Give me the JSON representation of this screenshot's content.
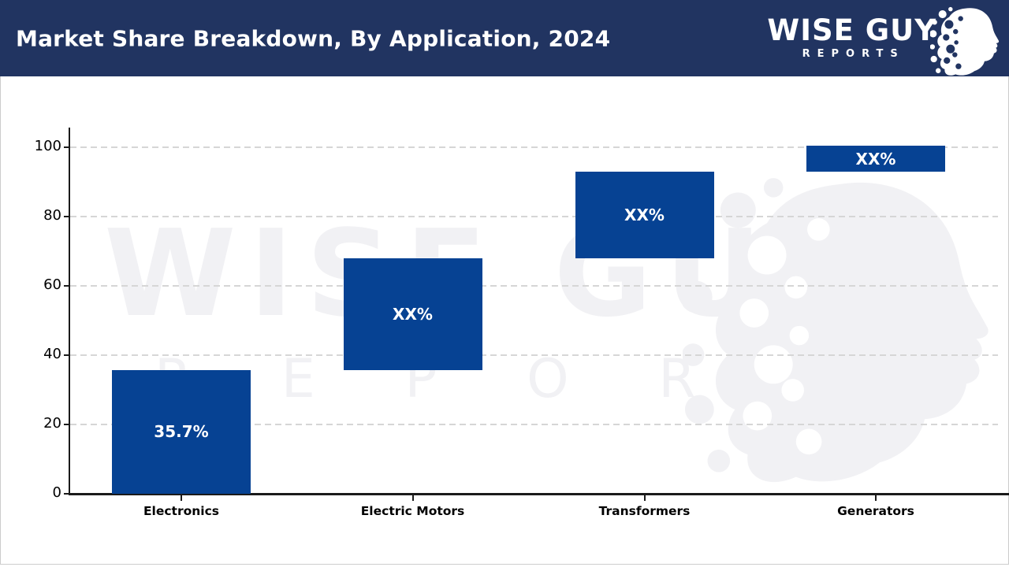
{
  "header": {
    "title": "Market Share Breakdown, By Application, 2024",
    "logo": {
      "name": "WISE GUY",
      "sub": "REPORTS"
    }
  },
  "watermark": {
    "name": "WISE GUY",
    "sub": "R E P O R T S"
  },
  "chart_data": {
    "type": "bar",
    "variant": "waterfall-stacked-breakdown",
    "title": "Market Share Breakdown, By Application, 2024",
    "categories": [
      "Electronics",
      "Electric Motors",
      "Transformers",
      "Generators"
    ],
    "segments": [
      {
        "category": "Electronics",
        "start": 0,
        "end": 35.7,
        "label": "35.7%"
      },
      {
        "category": "Electric Motors",
        "start": 35.7,
        "end": 67.9,
        "label": "XX%"
      },
      {
        "category": "Transformers",
        "start": 67.9,
        "end": 92.9,
        "label": "XX%"
      },
      {
        "category": "Generators",
        "start": 92.9,
        "end": 100.4,
        "label": "XX%"
      }
    ],
    "approx_segment_sizes_pct": [
      35.7,
      32.2,
      25.0,
      7.5
    ],
    "yticks": [
      0,
      20,
      40,
      60,
      80,
      100
    ],
    "ylim": [
      0,
      106
    ],
    "xlabel": "",
    "ylabel": "",
    "grid": "horizontal-dashed",
    "legend": "none",
    "colors": {
      "bar": "#064293",
      "bar_label": "#ffffff",
      "grid": "#d6d6d6",
      "axis": "#1a1a1a",
      "header_bg": "#213461",
      "header_text": "#ffffff",
      "watermark": "#f1f1f4"
    }
  }
}
